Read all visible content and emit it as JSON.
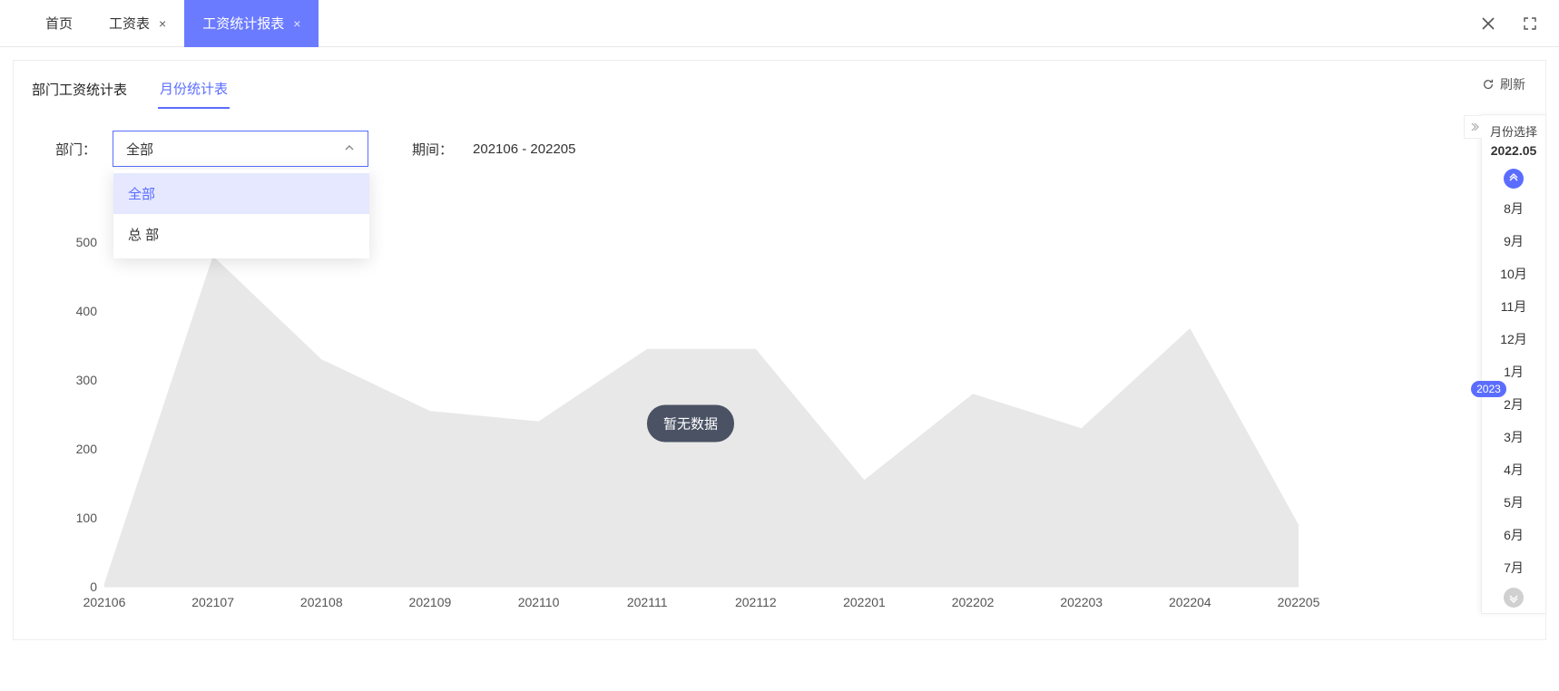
{
  "topTabs": [
    {
      "label": "首页",
      "closable": false,
      "active": false
    },
    {
      "label": "工资表",
      "closable": true,
      "active": false
    },
    {
      "label": "工资统计报表",
      "closable": true,
      "active": true
    }
  ],
  "subTabs": [
    {
      "label": "部门工资统计表",
      "active": false
    },
    {
      "label": "月份统计表",
      "active": true
    }
  ],
  "refreshLabel": "刷新",
  "filter": {
    "deptLabel": "部门：",
    "deptSelected": "全部",
    "deptOptions": [
      "全部",
      "总 部"
    ],
    "periodLabel": "期间：",
    "periodValue": "202106 - 202205"
  },
  "chart": {
    "type": "area",
    "noDataText": "暂无数据",
    "xCategories": [
      "202106",
      "202107",
      "202108",
      "202109",
      "202110",
      "202111",
      "202112",
      "202201",
      "202202",
      "202203",
      "202204",
      "202205"
    ],
    "yTicks": [
      0,
      100,
      200,
      300,
      400,
      500
    ],
    "ylim": [
      0,
      500
    ],
    "values": [
      5,
      480,
      330,
      255,
      240,
      345,
      345,
      155,
      280,
      230,
      375,
      90
    ],
    "areaFill": "#e8e8e8",
    "gridColor": "#e6e6e6",
    "axisTextColor": "#555555",
    "axisFontSize": 14,
    "background": "#ffffff"
  },
  "monthPanel": {
    "title": "月份选择",
    "current": "2022.05",
    "yearBadge": "2023",
    "yearBadgeIndex": 5,
    "items": [
      "8月",
      "9月",
      "10月",
      "11月",
      "12月",
      "1月",
      "2月",
      "3月",
      "4月",
      "5月",
      "6月",
      "7月"
    ]
  },
  "colors": {
    "accent": "#5b6dff",
    "tabActiveBg": "#6b7bff",
    "noDataBg": "#4a5264"
  }
}
